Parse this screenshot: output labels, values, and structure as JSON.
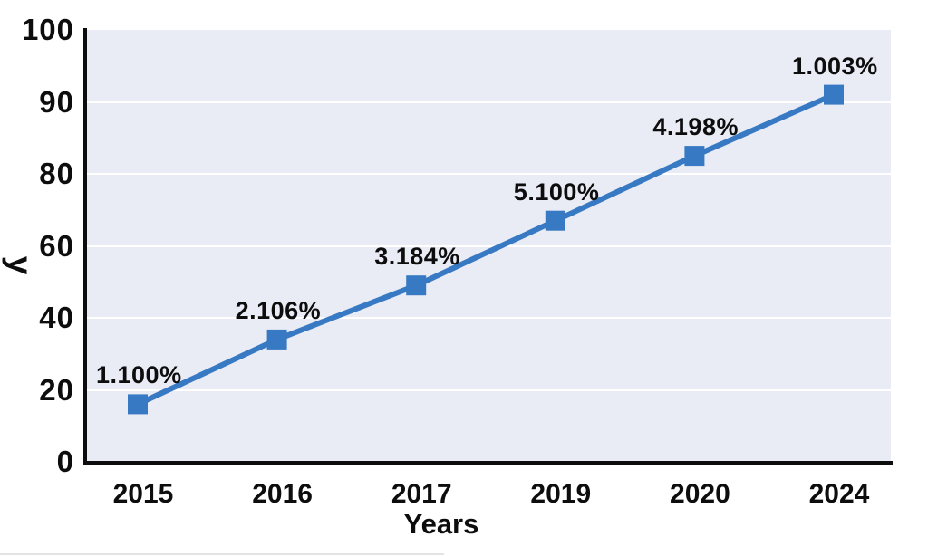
{
  "chart_data": {
    "type": "line",
    "title": "",
    "xlabel": "Years",
    "ylabel": "y",
    "categories": [
      "2015",
      "2016",
      "2017",
      "2019",
      "2020",
      "2024"
    ],
    "y_ticks": [
      0,
      20,
      40,
      60,
      80,
      90,
      100
    ],
    "y_tick_labels_top_to_bottom": [
      "100",
      "90",
      "80",
      "60",
      "40",
      "20",
      "0"
    ],
    "ylim": [
      0,
      100
    ],
    "grid": "horizontal",
    "legend_position": "none",
    "series": [
      {
        "name": "y",
        "x": [
          "2015",
          "2016",
          "2017",
          "2019",
          "2020",
          "2024"
        ],
        "values": [
          16,
          34,
          49,
          67,
          82.5,
          91
        ],
        "point_labels": [
          "1.100%",
          "2.106%",
          "3.184%",
          "5.100%",
          "4.198%",
          "1.003%"
        ],
        "marker": "square"
      }
    ],
    "colors": {
      "line": "#3779c2",
      "marker": "#3779c2",
      "plot_background": "#e9ebf5",
      "gridline": "#ffffff",
      "axis": "#0d0d0d",
      "text": "#0d0d0d"
    }
  }
}
